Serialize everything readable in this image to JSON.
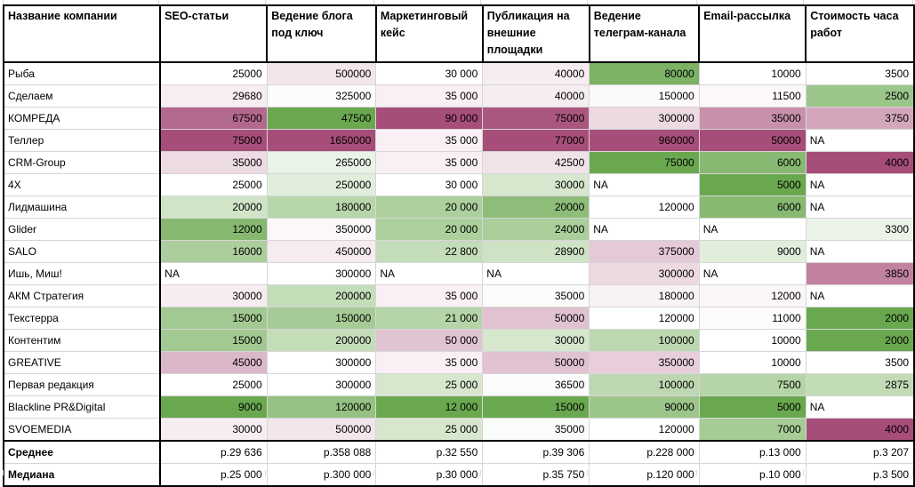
{
  "table": {
    "columns": [
      {
        "label": "Название компании"
      },
      {
        "label": "SEO-статьи"
      },
      {
        "label": "Ведение блога под ключ"
      },
      {
        "label": "Маркетинговый кейс"
      },
      {
        "label": "Публикация на внешние площадки"
      },
      {
        "label": "Ведение телеграм-канала"
      },
      {
        "label": "Email-рассылка"
      },
      {
        "label": "Стоимость часа работ"
      }
    ],
    "na_label": "NA",
    "rows": [
      {
        "company": "Рыба",
        "cells": [
          "25000",
          "500000",
          "30 000",
          "40000",
          "80000",
          "10000",
          "3500"
        ]
      },
      {
        "company": "Сделаем",
        "cells": [
          "29680",
          "325000",
          "35 000",
          "40000",
          "150000",
          "11500",
          "2500"
        ]
      },
      {
        "company": "КОМРЕДА",
        "cells": [
          "67500",
          "47500",
          "90 000",
          "75000",
          "300000",
          "35000",
          "3750"
        ]
      },
      {
        "company": "Теллер",
        "cells": [
          "75000",
          "1650000",
          "35 000",
          "77000",
          "960000",
          "50000",
          "NA"
        ]
      },
      {
        "company": "CRM-Group",
        "cells": [
          "35000",
          "265000",
          "35 000",
          "42500",
          "75000",
          "6000",
          "4000"
        ]
      },
      {
        "company": "4X",
        "cells": [
          "25000",
          "250000",
          "30 000",
          "30000",
          "NA",
          "5000",
          "NA"
        ]
      },
      {
        "company": "Лидмашина",
        "cells": [
          "20000",
          "180000",
          "20 000",
          "20000",
          "120000",
          "6000",
          "NA"
        ]
      },
      {
        "company": "Glider",
        "cells": [
          "12000",
          "350000",
          "20 000",
          "24000",
          "NA",
          "NA",
          "3300"
        ]
      },
      {
        "company": "SALO",
        "cells": [
          "16000",
          "450000",
          "22 800",
          "28900",
          "375000",
          "9000",
          "NA"
        ]
      },
      {
        "company": "Ишь, Миш!",
        "cells": [
          "NA",
          "300000",
          "NA",
          "NA",
          "300000",
          "NA",
          "3850"
        ]
      },
      {
        "company": "АКМ Стратегия",
        "cells": [
          "30000",
          "200000",
          "35 000",
          "35000",
          "180000",
          "12000",
          "NA"
        ]
      },
      {
        "company": "Текстерра",
        "cells": [
          "15000",
          "150000",
          "21 000",
          "50000",
          "120000",
          "11000",
          "2000"
        ]
      },
      {
        "company": "Контентим",
        "cells": [
          "15000",
          "200000",
          "50 000",
          "30000",
          "100000",
          "10000",
          "2000"
        ]
      },
      {
        "company": "GREATIVE",
        "cells": [
          "45000",
          "300000",
          "35 000",
          "50000",
          "350000",
          "10000",
          "3500"
        ]
      },
      {
        "company": "Первая редакция",
        "cells": [
          "25000",
          "300000",
          "25 000",
          "36500",
          "100000",
          "7500",
          "2875"
        ]
      },
      {
        "company": "Blackline PR&Digital",
        "cells": [
          "9000",
          "120000",
          "12 000",
          "15000",
          "90000",
          "5000",
          "NA"
        ]
      },
      {
        "company": "SVOEMEDIA",
        "cells": [
          "30000",
          "500000",
          "25 000",
          "35000",
          "120000",
          "7000",
          "4000"
        ]
      }
    ],
    "footer_rows": [
      {
        "label": "Среднее",
        "cells": [
          "р.29 636",
          "р.358 088",
          "р.32 550",
          "р.39 306",
          "р.228 000",
          "р.13 000",
          "р.3 207"
        ]
      },
      {
        "label": "Медиана",
        "cells": [
          "р.25 000",
          "р.300 000",
          "р.30 000",
          "р.35 750",
          "р.120 000",
          "р.10 000",
          "р.3 500"
        ]
      }
    ],
    "color_scale": {
      "low_color": "#6aa84f",
      "mid_color": "#ffffff",
      "high_color": "#a64d79",
      "midpoint_rule": "50th percentile per column"
    }
  }
}
